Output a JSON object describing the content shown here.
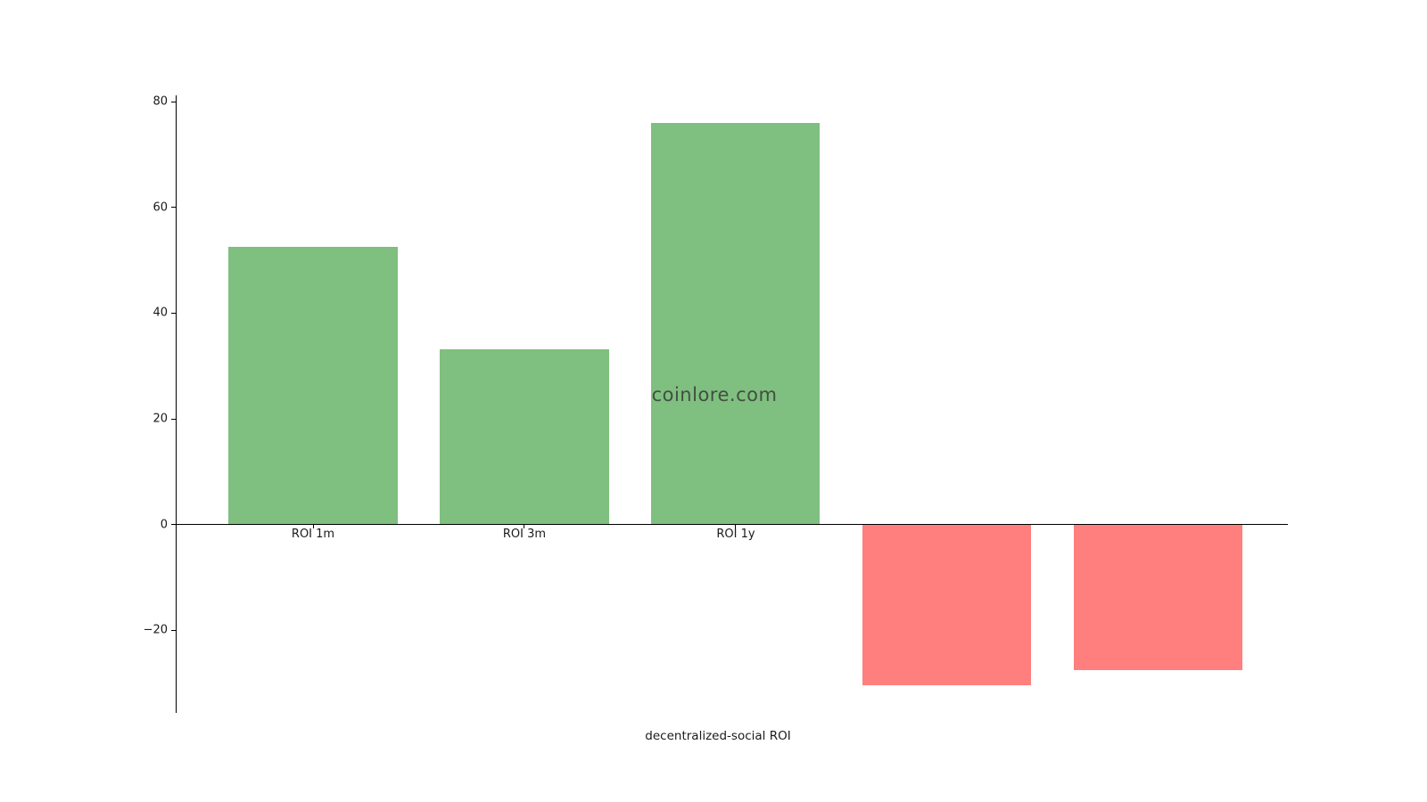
{
  "page": {
    "background": "#ffffff"
  },
  "watermark": {
    "text": "coinlore.com",
    "color": "#333333"
  },
  "chart_data": {
    "type": "bar",
    "title": "",
    "xlabel": "decentralized-social ROI",
    "ylabel": "",
    "watermark": "coinlore.com",
    "categories": [
      "ROI 1m",
      "ROI 3m",
      "ROI 1y",
      "",
      ""
    ],
    "values": [
      52.5,
      33.2,
      75.9,
      -30.3,
      -27.5
    ],
    "bar_colors": [
      "#7fbf7f",
      "#7fbf7f",
      "#7fbf7f",
      "#ff7f7f",
      "#ff7f7f"
    ],
    "positive_color": "#7fbf7f",
    "negative_color": "#ff7f7f",
    "axis_color": "#000000",
    "tick_text_color": "#1a1a1a",
    "ylim": [
      -35.6,
      81.2
    ],
    "yticks": [
      80,
      60,
      40,
      20,
      0,
      -20
    ],
    "ytick_labels": [
      "80",
      "60",
      "40",
      "20",
      "0",
      "−20"
    ],
    "grid": false,
    "legend": null
  }
}
